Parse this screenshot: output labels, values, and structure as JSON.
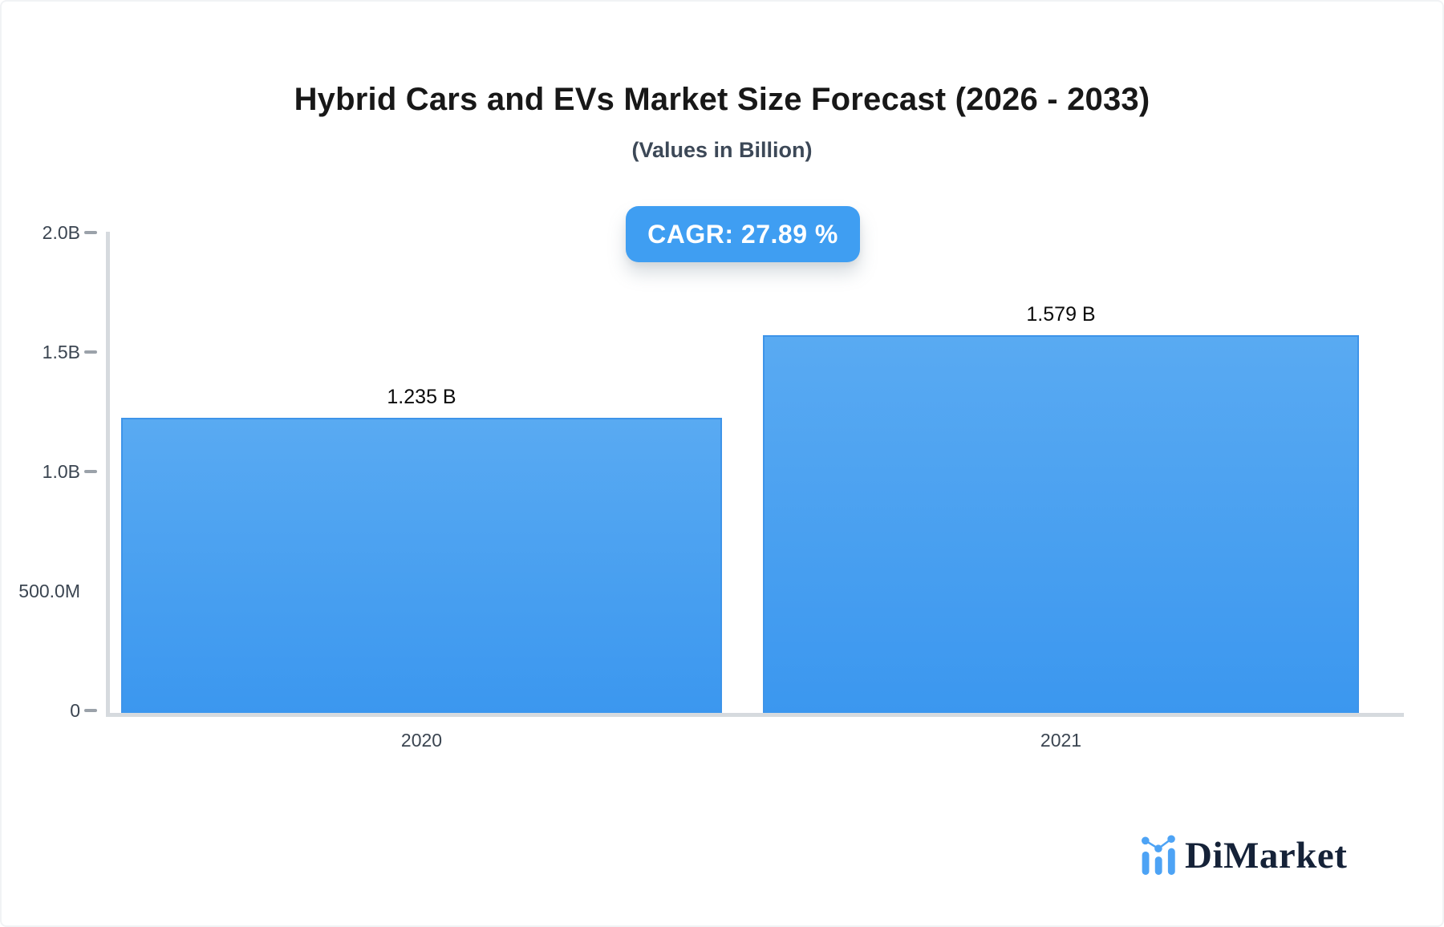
{
  "header": {
    "title": "Hybrid Cars and EVs Market Size Forecast (2026 - 2033)",
    "subtitle": "(Values in Billion)",
    "cagr_badge": "CAGR: 27.89 %"
  },
  "chart_data": {
    "type": "bar",
    "title": "Hybrid Cars and EVs Market Size Forecast (2026 - 2033)",
    "subtitle": "(Values in Billion)",
    "categories": [
      "2020",
      "2021"
    ],
    "values": [
      1.235,
      1.579
    ],
    "value_labels": [
      "1.235 B",
      "1.579 B"
    ],
    "unit": "Billion",
    "ylim": [
      0,
      2.0
    ],
    "y_ticks": [
      {
        "label": "2.0B",
        "value": 2.0,
        "dash": true
      },
      {
        "label": "1.5B",
        "value": 1.5,
        "dash": true
      },
      {
        "label": "1.0B",
        "value": 1.0,
        "dash": true
      },
      {
        "label": "500.0M",
        "value": 0.5,
        "dash": false
      },
      {
        "label": "0",
        "value": 0.0,
        "dash": true
      }
    ],
    "grid": false,
    "legend": false,
    "cagr": "27.89 %"
  },
  "branding": {
    "logo_text": "DiMarket",
    "logo_icon": "bar-line-chart-icon"
  },
  "colors": {
    "bar_top": "#59aaf2",
    "bar_bottom": "#3b97ef",
    "bar_border": "#3e94e9",
    "badge_bg": "#3f9ef2",
    "axis_line": "#d6dade",
    "tick_dash": "#9ba2aa",
    "tick_text": "#3b4551",
    "value_text": "#0b0b0b",
    "title_text": "#181818",
    "subtitle_text": "#3c4857",
    "logo_navy": "#152238",
    "logo_blue": "#4da3f5"
  }
}
